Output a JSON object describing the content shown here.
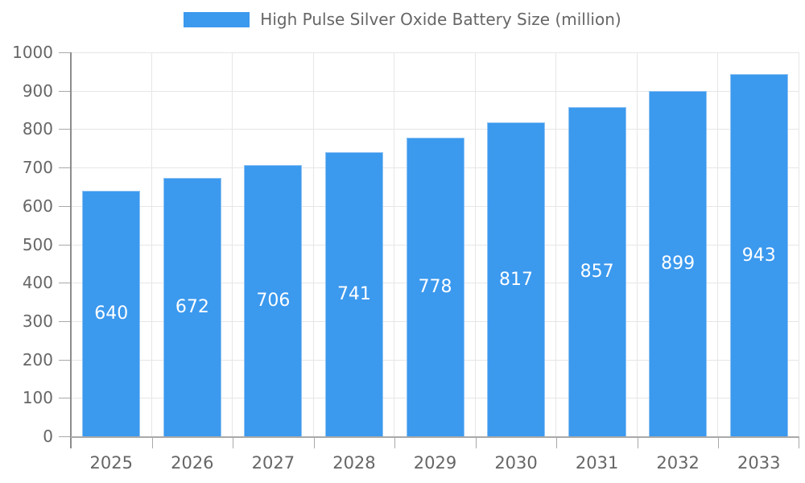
{
  "chart_data": {
    "type": "bar",
    "title": "High Pulse Silver Oxide Battery Size (million)",
    "categories": [
      "2025",
      "2026",
      "2027",
      "2028",
      "2029",
      "2030",
      "2031",
      "2032",
      "2033"
    ],
    "values": [
      640,
      672,
      706,
      741,
      778,
      817,
      857,
      899,
      943
    ],
    "xlabel": "",
    "ylabel": "",
    "ylim": [
      0,
      1000
    ],
    "y_tick_step": 100,
    "y_tick_labels": [
      "0",
      "100",
      "200",
      "300",
      "400",
      "500",
      "600",
      "700",
      "800",
      "900",
      "1000"
    ],
    "grid": true,
    "legend_position": "top-center",
    "value_labels_position": "inside-middle",
    "colors": {
      "bar": "#3B99EE",
      "bar_border": "#8FC3F3",
      "grid": "#E6E6E6",
      "axis_line": "#8C8C8C",
      "x_axis_line": "#A9A9A9",
      "tick": "#A9A9A9",
      "label_text": "#666666",
      "value_label": "#FFFFFF",
      "background": "#FFFFFF"
    }
  }
}
